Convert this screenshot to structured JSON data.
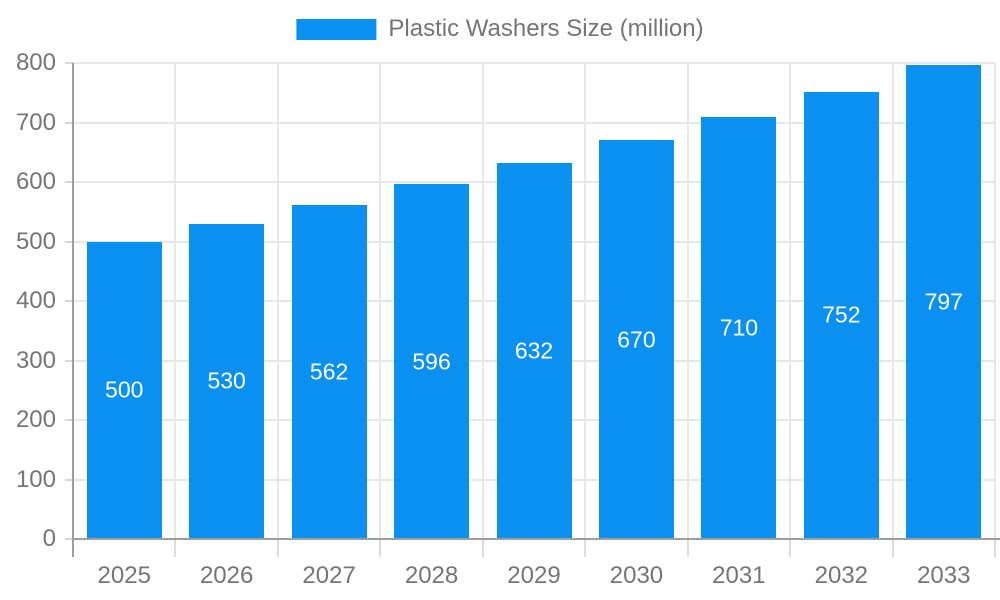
{
  "chart_data": {
    "type": "bar",
    "title": "Plastic Washers Size (million)",
    "legend": {
      "label": "Plastic Washers Size (million)",
      "position": "top-center"
    },
    "categories": [
      "2025",
      "2026",
      "2027",
      "2028",
      "2029",
      "2030",
      "2031",
      "2032",
      "2033"
    ],
    "series": [
      {
        "name": "Plastic Washers Size (million)",
        "values": [
          500,
          530,
          562,
          596,
          632,
          670,
          710,
          752,
          797
        ]
      }
    ],
    "value_labels_shown_inside_bars": true,
    "xlabel": "",
    "ylabel": "",
    "ylim": [
      0,
      800
    ],
    "ytick_step": 100,
    "ytick_labels": [
      "0",
      "100",
      "200",
      "300",
      "400",
      "500",
      "600",
      "700",
      "800"
    ],
    "grid": true,
    "colors": {
      "bar": "#0a90f0",
      "bar_value_text": "#ffffff",
      "axis_line": "#9e9e9e",
      "gridline": "#e6e6e6",
      "tick": "#d6d6d6",
      "axis_text": "#757575",
      "background": "#ffffff"
    }
  }
}
